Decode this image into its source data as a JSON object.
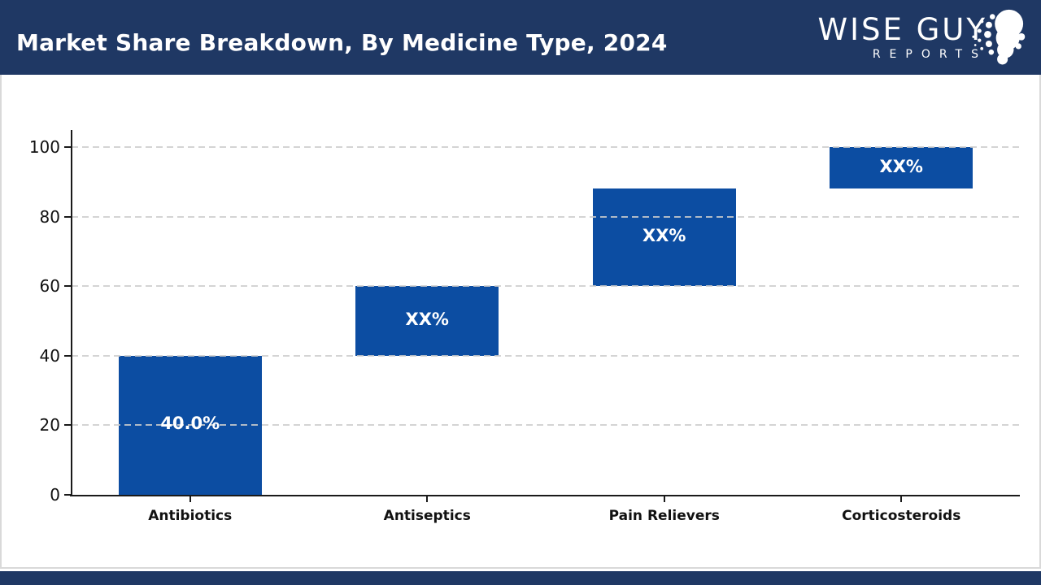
{
  "header": {
    "title": "Market Share Breakdown, By Medicine Type, 2024",
    "bg_color": "#1f3864",
    "logo": {
      "line1": "WISE GUY",
      "line2": "REPORTS"
    }
  },
  "watermark": {
    "line1": "WISE GUY",
    "line2": "R E P O R T S"
  },
  "chart_data": {
    "type": "bar",
    "subtype": "waterfall",
    "title": "Market Share Breakdown, By Medicine Type, 2024",
    "categories": [
      "Antibiotics",
      "Antiseptics",
      "Pain Relievers",
      "Corticosteroids"
    ],
    "segments": [
      {
        "category": "Antibiotics",
        "start": 0,
        "end": 40,
        "label": "40.0%"
      },
      {
        "category": "Antiseptics",
        "start": 40,
        "end": 60,
        "label": "XX%"
      },
      {
        "category": "Pain Relievers",
        "start": 60,
        "end": 88,
        "label": "XX%"
      },
      {
        "category": "Corticosteroids",
        "start": 88,
        "end": 100,
        "label": "XX%"
      }
    ],
    "xlabel": "",
    "ylabel": "",
    "ylim": [
      0,
      105
    ],
    "yticks": [
      0,
      20,
      40,
      60,
      80,
      100
    ],
    "grid": "dashed horizontal, drawn over bars",
    "legend": "none",
    "bar_color": "#0c4da2",
    "bar_label_color": "#ffffff"
  }
}
